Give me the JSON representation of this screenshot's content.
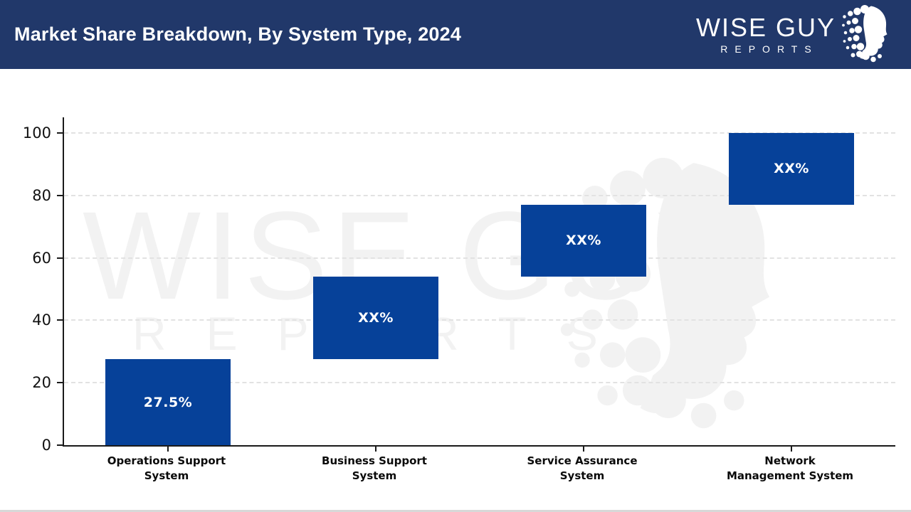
{
  "header": {
    "title": "Market Share Breakdown, By System Type, 2024",
    "bg_color": "#21386a",
    "logo": {
      "line1": "WISE GUY",
      "line2": "REPORTS"
    }
  },
  "watermark": {
    "line1": "WISE GUY",
    "line2": "REPORTS"
  },
  "chart_data": {
    "type": "bar",
    "subtype": "waterfall",
    "title": "Market Share Breakdown, By System Type, 2024",
    "xlabel": "",
    "ylabel": "",
    "categories": [
      "Operations Support System",
      "Business Support System",
      "Service Assurance System",
      "Network Management System"
    ],
    "segments": [
      {
        "start": 0,
        "end": 27.5,
        "label": "27.5%"
      },
      {
        "start": 27.5,
        "end": 54,
        "label": "XX%"
      },
      {
        "start": 54,
        "end": 77,
        "label": "XX%"
      },
      {
        "start": 77,
        "end": 100,
        "label": "XX%"
      }
    ],
    "yticks": [
      0,
      20,
      40,
      60,
      80,
      100
    ],
    "ylim": [
      0,
      105
    ],
    "grid": "horizontal-dashed",
    "legend": "none",
    "bar_color": "#064199",
    "bar_label_color": "#ffffff",
    "axis_color": "#1a1a1a",
    "gridline_color": "#e2e2e2"
  }
}
